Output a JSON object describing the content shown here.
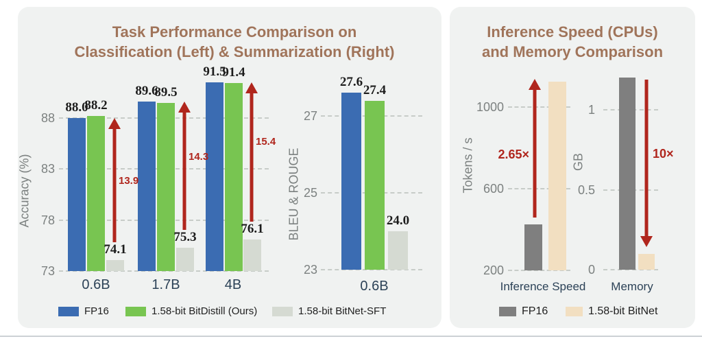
{
  "colors": {
    "fp16_blue": "#3b6cb2",
    "bitdistill_green": "#78c551",
    "bitnet_sft_gray": "#d5dad2",
    "fp16_gray": "#7f7f7f",
    "bitnet_beige": "#f2dfc1",
    "arrow_red": "#b0261d",
    "title_brown": "#a0745a",
    "card_bg": "#f0f2f1",
    "tick_gray": "#7c8180",
    "category_slate": "#2c4257"
  },
  "chart_data": [
    {
      "id": "task-performance",
      "type": "grouped_bar",
      "title_lines": [
        "Task Performance Comparison on",
        "Classification (Left) & Summarization (Right)"
      ],
      "legend": [
        "FP16",
        "1.58-bit BitDistill (Ours)",
        "1.58-bit BitNet-SFT"
      ],
      "panels": [
        {
          "name": "classification",
          "ylabel": "Accuracy (%)",
          "yticks": [
            73,
            78,
            83,
            88
          ],
          "ylim": [
            73,
            92.5
          ],
          "grid": "dashed",
          "categories": [
            "0.6B",
            "1.7B",
            "4B"
          ],
          "series": [
            {
              "name": "FP16",
              "values": [
                88.0,
                89.6,
                91.5
              ]
            },
            {
              "name": "1.58-bit BitDistill (Ours)",
              "values": [
                88.2,
                89.5,
                91.4
              ]
            },
            {
              "name": "1.58-bit BitNet-SFT",
              "values": [
                74.1,
                75.3,
                76.1
              ]
            }
          ],
          "bar_labels": [
            [
              "88.0",
              "89.6",
              "91.5"
            ],
            [
              "88.2",
              "89.5",
              "91.4"
            ],
            [
              "74.1",
              "75.3",
              "76.1"
            ]
          ],
          "arrows": [
            {
              "label": "13.9",
              "from": 74.1,
              "to": 88.0
            },
            {
              "label": "14.3",
              "from": 75.3,
              "to": 89.6
            },
            {
              "label": "15.4",
              "from": 76.1,
              "to": 91.5
            }
          ]
        },
        {
          "name": "summarization",
          "ylabel": "BLEU & ROUGE",
          "yticks": [
            23,
            25,
            27
          ],
          "ylim": [
            23,
            28.4
          ],
          "grid": "dashed",
          "categories": [
            "0.6B"
          ],
          "series": [
            {
              "name": "FP16",
              "values": [
                27.6
              ]
            },
            {
              "name": "1.58-bit BitDistill (Ours)",
              "values": [
                27.4
              ]
            },
            {
              "name": "1.58-bit BitNet-SFT",
              "values": [
                24.0
              ]
            }
          ],
          "bar_labels": [
            [
              "27.6"
            ],
            [
              "27.4"
            ],
            [
              "24.0"
            ]
          ]
        }
      ]
    },
    {
      "id": "speed-memory",
      "type": "bar",
      "title_lines": [
        "Inference Speed (CPUs)",
        "and Memory Comparison"
      ],
      "legend": [
        "FP16",
        "1.58-bit BitNet"
      ],
      "panels": [
        {
          "name": "inference-speed",
          "ylabel": "Tokens / s",
          "yticks": [
            200,
            600,
            1000
          ],
          "ylim": [
            200,
            1150
          ],
          "grid": "dashed",
          "categories": [
            "Inference Speed"
          ],
          "series": [
            {
              "name": "FP16",
              "values": [
                425
              ]
            },
            {
              "name": "1.58-bit BitNet",
              "values": [
                1126
              ]
            }
          ],
          "arrow": {
            "label": "2.65×",
            "direction": "up"
          }
        },
        {
          "name": "memory",
          "ylabel": "GB",
          "yticks": [
            0,
            0.5,
            1
          ],
          "ylim": [
            0,
            1.25
          ],
          "grid": "dashed",
          "categories": [
            "Memory"
          ],
          "series": [
            {
              "name": "FP16",
              "values": [
                1.2
              ]
            },
            {
              "name": "1.58-bit BitNet",
              "values": [
                0.1
              ]
            }
          ],
          "arrow": {
            "label": "10×",
            "direction": "down"
          }
        }
      ]
    }
  ]
}
